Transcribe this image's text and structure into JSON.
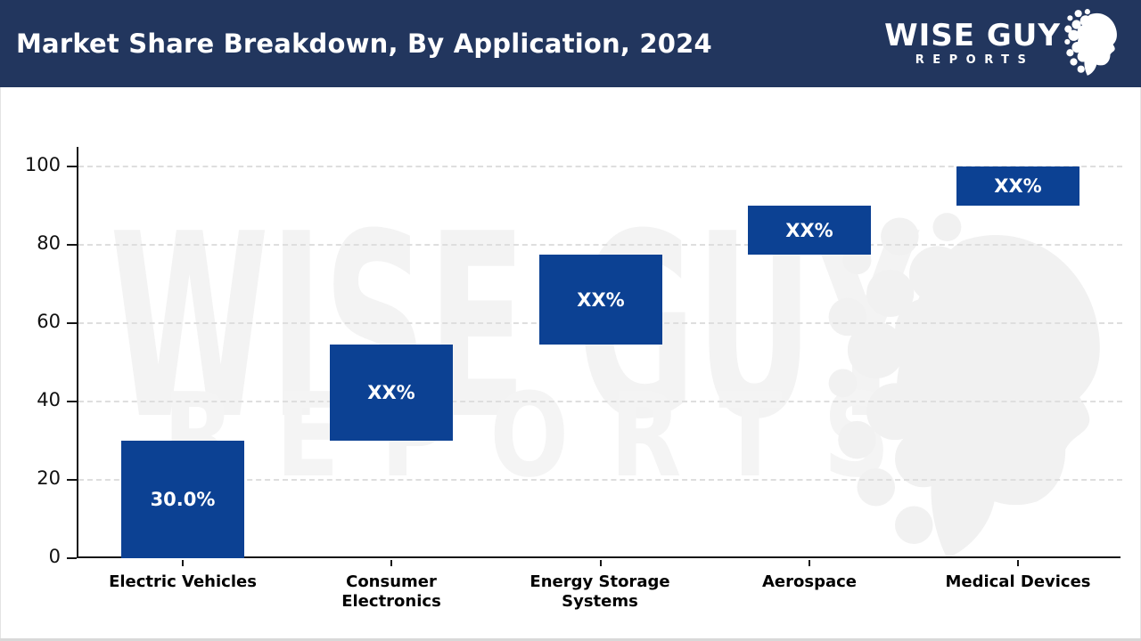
{
  "header": {
    "title": "Market Share Breakdown, By Application, 2024",
    "logo": {
      "name": "WISE GUY",
      "subtext": "REPORTS"
    }
  },
  "watermark": {
    "line1": "WISE GUY",
    "line2": "REPORTS"
  },
  "colors": {
    "header_bg": "#22365e",
    "bar": "#0c4193",
    "bar_label": "#ffffff",
    "axis": "#161616",
    "grid": "#dedede",
    "watermark": "#f3f3f3"
  },
  "chart_data": {
    "type": "bar",
    "subtype": "waterfall",
    "title": "Market Share Breakdown, By Application, 2024",
    "xlabel": "",
    "ylabel": "",
    "ylim": [
      0,
      105
    ],
    "yticks": [
      0,
      20,
      40,
      60,
      80,
      100
    ],
    "grid": "horizontal dashed",
    "legend": null,
    "categories": [
      "Electric Vehicles",
      "Consumer Electronics",
      "Energy Storage Systems",
      "Aerospace",
      "Medical Devices"
    ],
    "category_label_lines": [
      [
        "Electric Vehicles"
      ],
      [
        "Consumer",
        "Electronics"
      ],
      [
        "Energy Storage",
        "Systems"
      ],
      [
        "Aerospace"
      ],
      [
        "Medical Devices"
      ]
    ],
    "segments": [
      {
        "category": "Electric Vehicles",
        "start": 0,
        "end": 30,
        "label": "30.0%"
      },
      {
        "category": "Consumer Electronics",
        "start": 30,
        "end": 54.5,
        "label": "XX%"
      },
      {
        "category": "Energy Storage Systems",
        "start": 54.5,
        "end": 77.5,
        "label": "XX%"
      },
      {
        "category": "Aerospace",
        "start": 77.5,
        "end": 90,
        "label": "XX%"
      },
      {
        "category": "Medical Devices",
        "start": 90,
        "end": 100,
        "label": "XX%"
      }
    ]
  }
}
